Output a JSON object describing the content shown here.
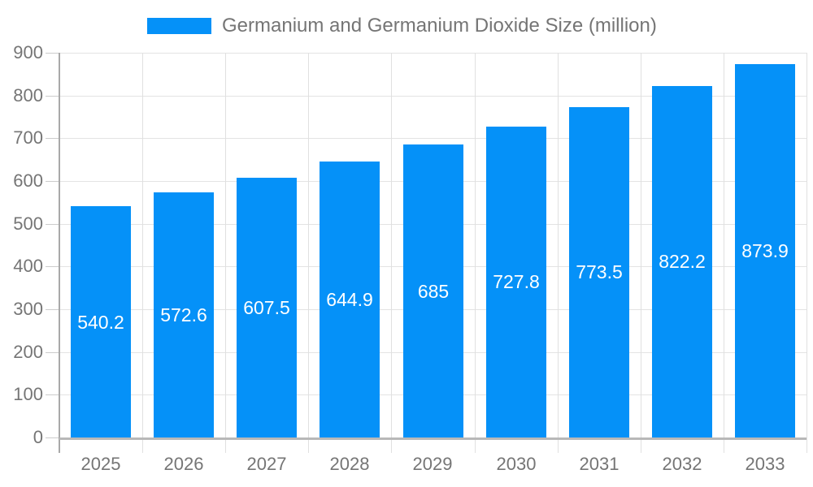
{
  "page": {
    "background_color": "#ffffff"
  },
  "legend": {
    "swatch_icon": "series-color-swatch",
    "swatch_color": "#0591f8"
  },
  "chart_data": {
    "type": "bar",
    "title": "Germanium and Germanium Dioxide Size (million)",
    "categories": [
      "2025",
      "2026",
      "2027",
      "2028",
      "2029",
      "2030",
      "2031",
      "2032",
      "2033"
    ],
    "values": [
      540.2,
      572.6,
      607.5,
      644.9,
      685,
      727.8,
      773.5,
      822.2,
      873.9
    ],
    "bar_labels": [
      "540.2",
      "572.6",
      "607.5",
      "644.9",
      "685",
      "727.8",
      "773.5",
      "822.2",
      "873.9"
    ],
    "y_tick_labels": [
      "0",
      "100",
      "200",
      "300",
      "400",
      "500",
      "600",
      "700",
      "800",
      "900"
    ],
    "xlabel": "",
    "ylabel": "",
    "ylim": [
      0,
      900
    ],
    "ytick_step": 100,
    "grid": true,
    "legend_position": "top",
    "bar_color": "#0591f8",
    "bar_label_color": "#ffffff",
    "axis_text_color": "#757575",
    "gridline_color": "#e3e3e3",
    "axis_line_color": "#a9a9a9"
  }
}
